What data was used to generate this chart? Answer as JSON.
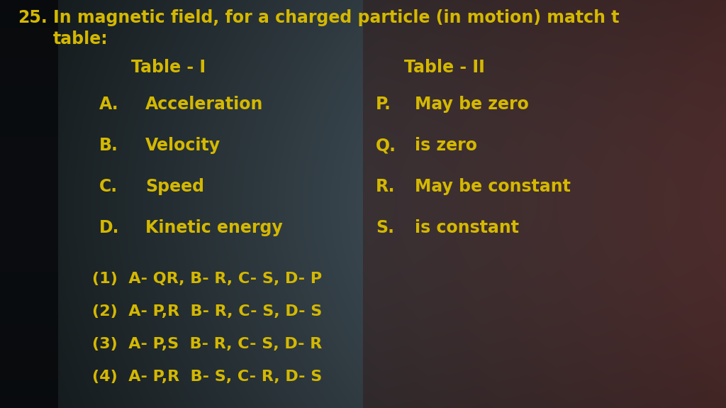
{
  "bg_color": "#1c2526",
  "question_number": "25.",
  "question_text": "In magnetic field, for a charged particle (in motion) match t",
  "question_text2": "table:",
  "table1_header": "Table - I",
  "table2_header": "Table - II",
  "table1_items": [
    [
      "A.",
      "Acceleration"
    ],
    [
      "B.",
      "Velocity"
    ],
    [
      "C.",
      "Speed"
    ],
    [
      "D.",
      "Kinetic energy"
    ]
  ],
  "table2_items": [
    [
      "P.",
      "May be zero"
    ],
    [
      "Q.",
      "is zero"
    ],
    [
      "R.",
      "May be constant"
    ],
    [
      "S.",
      "is constant"
    ]
  ],
  "options": [
    "(1)  A- QR, B- R, C- S, D- P",
    "(2)  A- P,R  B- R, C- S, D- S",
    "(3)  A- P,S  B- R, C- S, D- R",
    "(4)  A- P,R  B- S, C- R, D- S"
  ],
  "text_color": "#d4b800",
  "header_fontsize": 17,
  "label_fontsize": 17,
  "text_fontsize": 17,
  "option_fontsize": 16,
  "question_fontsize": 17,
  "grad_left": "#0d1215",
  "grad_mid": "#2a3540",
  "grad_right": "#3a3845"
}
